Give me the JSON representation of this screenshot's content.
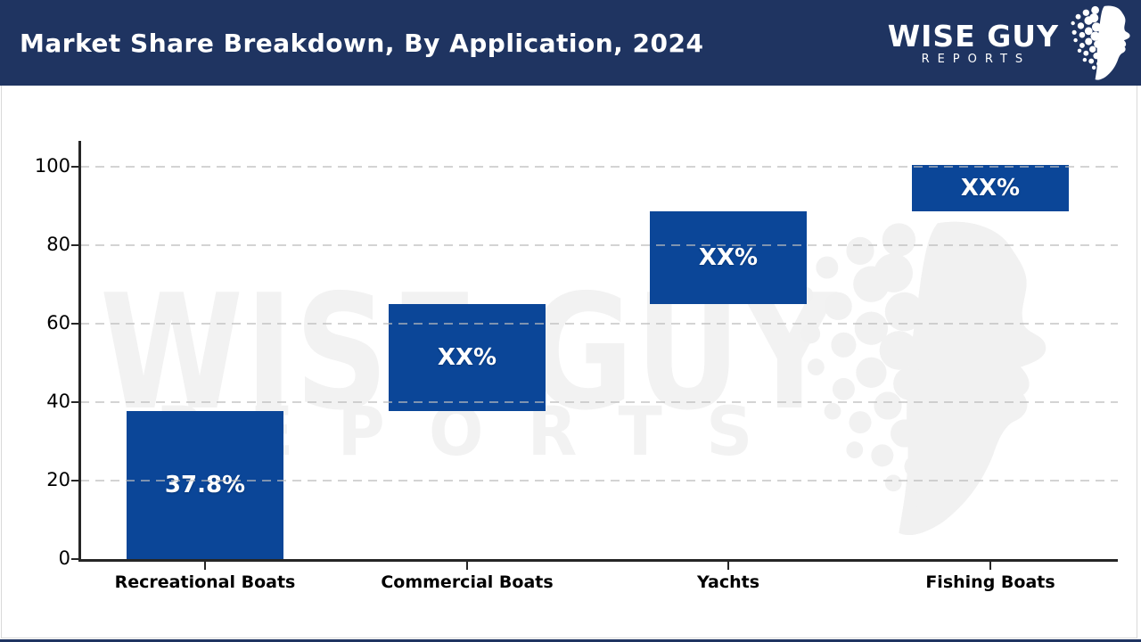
{
  "header": {
    "title": "Market Share Breakdown, By Application, 2024",
    "brand": {
      "line1": "WISE GUY",
      "line2": "REPORTS"
    }
  },
  "watermark": {
    "line1": "WISE GUY",
    "line2": "REPORTS"
  },
  "chart_data": {
    "type": "bar",
    "subtype": "floating_cumulative_segments",
    "title": "Market Share Breakdown, By Application, 2024",
    "categories": [
      "Recreational Boats",
      "Commercial Boats",
      "Yachts",
      "Fishing Boats"
    ],
    "segments": [
      {
        "category": "Recreational Boats",
        "start": 0,
        "end": 37.8,
        "label": "37.8%"
      },
      {
        "category": "Commercial Boats",
        "start": 37.8,
        "end": 65.1,
        "label": "XX%"
      },
      {
        "category": "Yachts",
        "start": 65.1,
        "end": 88.6,
        "label": "XX%"
      },
      {
        "category": "Fishing Boats",
        "start": 88.6,
        "end": 100.4,
        "label": "XX%"
      }
    ],
    "yticks": [
      0,
      20,
      40,
      60,
      80,
      100
    ],
    "ylim": [
      0,
      105
    ],
    "xlabel": "",
    "ylabel": "",
    "grid": "horizontal-dashed",
    "legend": "none",
    "bar_color": "#0b4698",
    "bar_label_color": "#ffffff"
  },
  "colors": {
    "header_bg": "#1f3461",
    "bar": "#0b4698",
    "grid": "#dcdcdc",
    "axis": "#262626",
    "watermark": "#f2f2f2",
    "bottom_strip": "#1f3461"
  }
}
